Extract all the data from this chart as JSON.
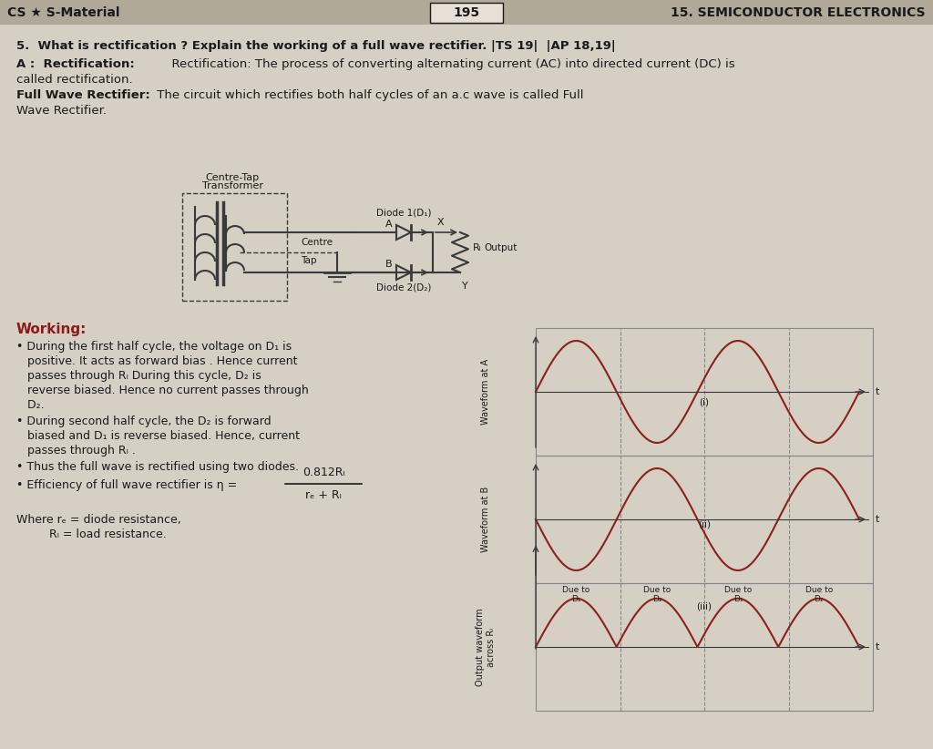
{
  "bg_color": "#d6cfc4",
  "header_bg": "#c8bfb0",
  "title_text": "CS ★ S-Material",
  "page_num": "195",
  "chapter_title": "15. SEMICONDUCTOR ELECTRONICS",
  "question": "5.  What is rectification ? Explain the working of a full wave rectifier. |TS 19|  |AP 18,19|",
  "answer_lines": [
    "A :  Rectification: The process of converting alternating current (AC) into directed current (DC) is",
    "called rectification.",
    "Full Wave Rectifier: The circuit which rectifies both half cycles of an a.c wave is called Full",
    "Wave Rectifier."
  ],
  "working_label": "Working:",
  "bullet1_lines": [
    "• During the first half cycle, the voltage on D₁ is",
    "   positive. It acts as forward bias . Hence current",
    "   passes through Rₗ During this cycle, D₂ is",
    "   reverse biased. Hence no current passes through",
    "   D₂."
  ],
  "bullet2_lines": [
    "• During second half cycle, the D₂ is forward",
    "   biased and D₁ is reverse biased. Hence, current",
    "   passes through Rₗ ."
  ],
  "bullet3": "• Thus the full wave is rectified using two diodes.",
  "efficiency_line": "• Efficiency of full wave rectifier is η =",
  "efficiency_formula_num": "0.812Rₗ",
  "efficiency_formula_den": "rₑ + Rₗ",
  "where_line1": "Where rₑ = diode resistance,",
  "where_line2": "         Rₗ = load resistance.",
  "circuit_labels": {
    "centre_tap": "Centre-Tap",
    "transformer": "Transformer",
    "diode1": "Diode 1(D₁)",
    "centre": "Centre",
    "tap": "Tap",
    "point_a": "A",
    "point_b": "B",
    "diode2": "Diode 2(D₂)",
    "point_x": "X",
    "rl": "Rₗ",
    "output": "Output",
    "point_y": "Y"
  },
  "waveform_labels": {
    "waveform_a": "Waveform at A",
    "waveform_b": "Waveform at B",
    "output_waveform": "Output waveform\nacross Rₗ",
    "label_i": "(i)",
    "label_ii": "(ii)",
    "label_iii": "(iii)",
    "due_labels": [
      "Due to\nD₁",
      "Due to\nD₂",
      "Due to\nD₁",
      "Due to\nD₂"
    ]
  },
  "text_color": "#1a1a1a",
  "dark_red": "#8b1a1a",
  "wave_color": "#8b2020",
  "circuit_color": "#3a3a3a"
}
